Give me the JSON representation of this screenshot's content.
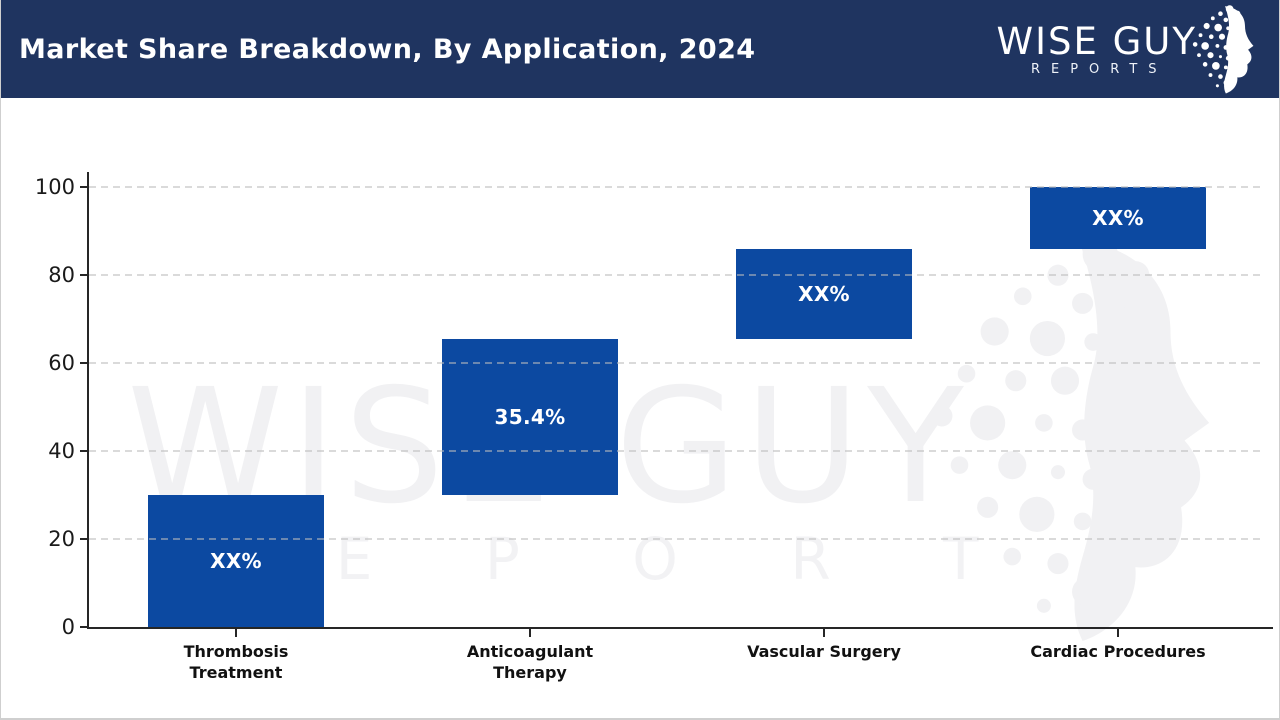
{
  "header": {
    "title": "Market Share Breakdown, By Application, 2024",
    "bg_color": "#1f3460",
    "logo": {
      "line1": "WISE GUY",
      "line2": "REPORTS",
      "icon": "dotted-head-profile-icon",
      "color": "#ffffff"
    }
  },
  "watermark": {
    "line1": "WISE GUY",
    "line2": "R E P O R T S",
    "icon": "dotted-head-profile-watermark",
    "color": "#f1f1f3"
  },
  "chart_data": {
    "type": "bar",
    "subtype": "floating-waterfall",
    "title": "Market Share Breakdown, By Application, 2024",
    "categories": [
      "Thrombosis\nTreatment",
      "Anticoagulant\nTherapy",
      "Vascular Surgery",
      "Cardiac Procedures"
    ],
    "segments": [
      {
        "category": "Thrombosis Treatment",
        "label": "XX%",
        "start": 0,
        "end": 30
      },
      {
        "category": "Anticoagulant Therapy",
        "label": "35.4%",
        "start": 30,
        "end": 65.4
      },
      {
        "category": "Vascular Surgery",
        "label": "XX%",
        "start": 65.4,
        "end": 86
      },
      {
        "category": "Cardiac Procedures",
        "label": "XX%",
        "start": 86,
        "end": 100
      }
    ],
    "xlabel": "",
    "ylabel": "",
    "ylim": [
      0,
      100
    ],
    "yticks": [
      0,
      20,
      40,
      60,
      80,
      100
    ],
    "grid": "dashed-horizontal",
    "legend": "none",
    "bar_color": "#0c49a1",
    "bar_label_color": "#ffffff",
    "axis_color": "#262626",
    "gridline_color": "#d9d9d9"
  }
}
